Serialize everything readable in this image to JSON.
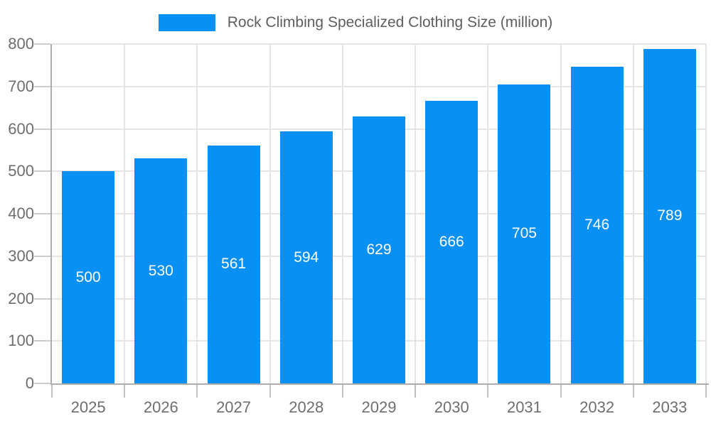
{
  "legend": {
    "label": "Rock Climbing Specialized Clothing Size (million)"
  },
  "colors": {
    "bar": "#0990f4",
    "bar_label_text": "#ffffff",
    "axis_line": "#adadad",
    "grid_line": "#e5e5e5",
    "y_tick_line": "#cdcdcd",
    "x_tick_line": "#c2c2c2",
    "tick_label_text": "#6e6e6e",
    "legend_text": "#5e5e5e",
    "background": "#ffffff"
  },
  "chart_data": {
    "type": "bar",
    "title": "Rock Climbing Specialized Clothing Size (million)",
    "categories": [
      "2025",
      "2026",
      "2027",
      "2028",
      "2029",
      "2030",
      "2031",
      "2032",
      "2033"
    ],
    "values": [
      500,
      530,
      561,
      594,
      629,
      666,
      705,
      746,
      789
    ],
    "value_labels": [
      "500",
      "530",
      "561",
      "594",
      "629",
      "666",
      "705",
      "746",
      "789"
    ],
    "xlabel": "",
    "ylabel": "",
    "ylim": [
      0,
      800
    ],
    "ytick_step": 100,
    "yticks": [
      0,
      100,
      200,
      300,
      400,
      500,
      600,
      700,
      800
    ],
    "grid": "horizontal and vertical light gridlines",
    "legend_position": "top-center",
    "value_label_position": "inside-bar-centered"
  }
}
